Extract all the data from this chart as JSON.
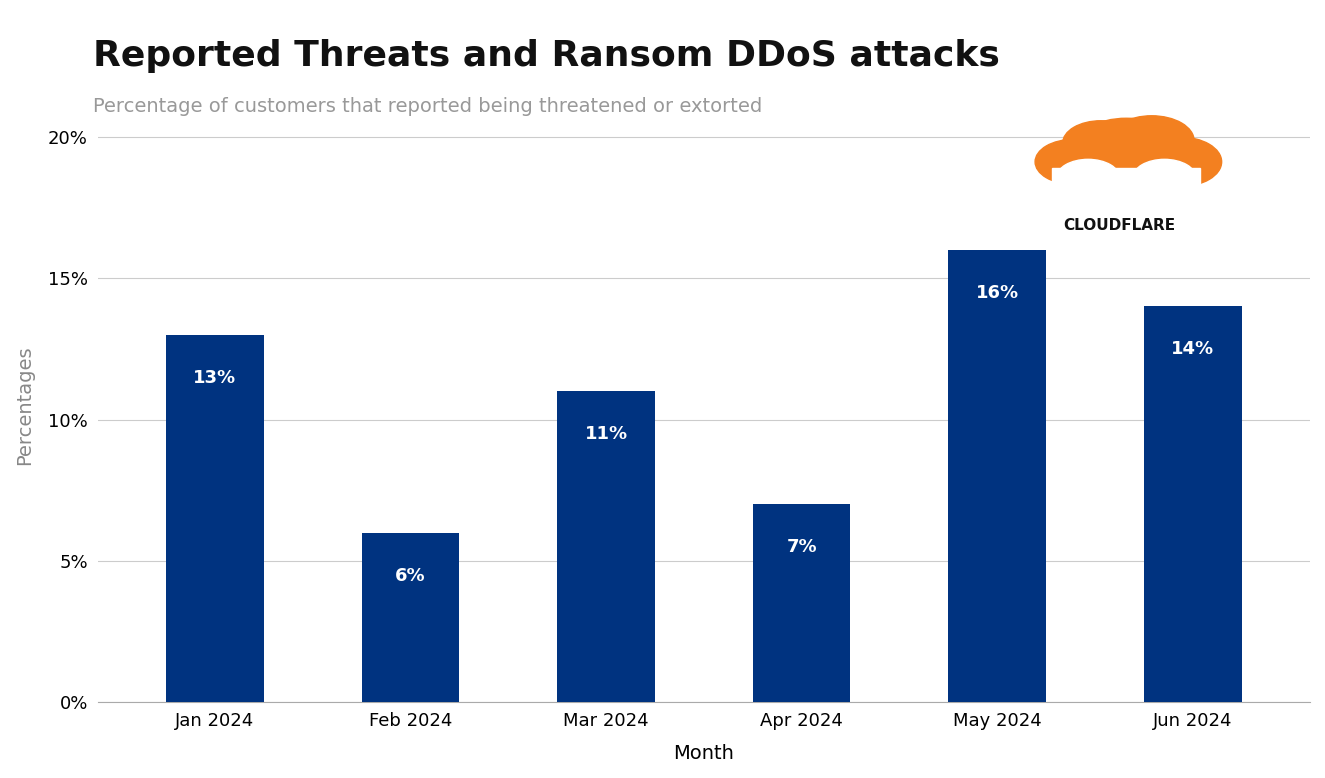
{
  "title": "Reported Threats and Ransom DDoS attacks",
  "subtitle": "Percentage of customers that reported being threatened or extorted",
  "xlabel": "Month",
  "ylabel": "Percentages",
  "categories": [
    "Jan 2024",
    "Feb 2024",
    "Mar 2024",
    "Apr 2024",
    "May 2024",
    "Jun 2024"
  ],
  "values": [
    13,
    6,
    11,
    7,
    16,
    14
  ],
  "bar_color": "#003380",
  "label_color": "#ffffff",
  "ylim": [
    0,
    21
  ],
  "yticks": [
    0,
    5,
    10,
    15,
    20
  ],
  "ytick_labels": [
    "0%",
    "5%",
    "10%",
    "15%",
    "20%"
  ],
  "background_color": "#ffffff",
  "grid_color": "#cccccc",
  "title_fontsize": 26,
  "subtitle_fontsize": 14,
  "axis_label_fontsize": 14,
  "tick_fontsize": 13,
  "bar_label_fontsize": 13,
  "cloudflare_text": "CLOUDFLARE",
  "cloudflare_logo_color_main": "#f38020",
  "cloudflare_logo_color_light": "#fbad41"
}
